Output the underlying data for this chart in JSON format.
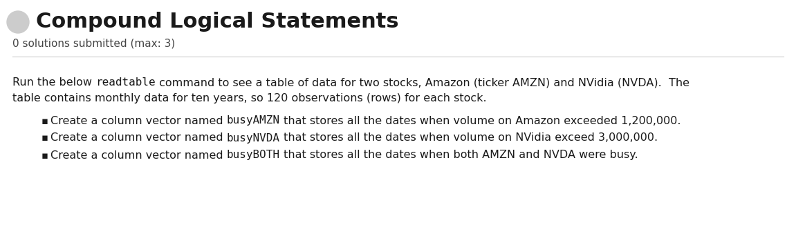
{
  "title": "Compound Logical Statements",
  "subtitle": "0 solutions submitted (max: 3)",
  "background_color": "#ffffff",
  "title_color": "#1a1a1a",
  "subtitle_color": "#444444",
  "circle_color": "#cccccc",
  "separator_color": "#cccccc",
  "body_line1_pre": "Run the below ",
  "body_line1_code": "readtable",
  "body_line1_post": " command to see a table of data for two stocks, Amazon (ticker AMZN) and NVidia (NVDA).  The",
  "body_line2": "table contains monthly data for ten years, so 120 observations (rows) for each stock.",
  "bullet_1_pre": "Create a column vector named ",
  "bullet_1_code": "busyAMZN",
  "bullet_1_post": " that stores all the dates when volume on Amazon exceeded 1,200,000.",
  "bullet_2_pre": "Create a column vector named ",
  "bullet_2_code": "busyNVDA",
  "bullet_2_post": " that stores all the dates when volume on NVidia exceed 3,000,000.",
  "bullet_3_pre": "Create a column vector named ",
  "bullet_3_code": "busyBOTH",
  "bullet_3_post": " that stores all the dates when both AMZN and NVDA were busy.",
  "title_fontsize": 22,
  "subtitle_fontsize": 11,
  "body_fontsize": 11.5,
  "bullet_fontsize": 11.5
}
